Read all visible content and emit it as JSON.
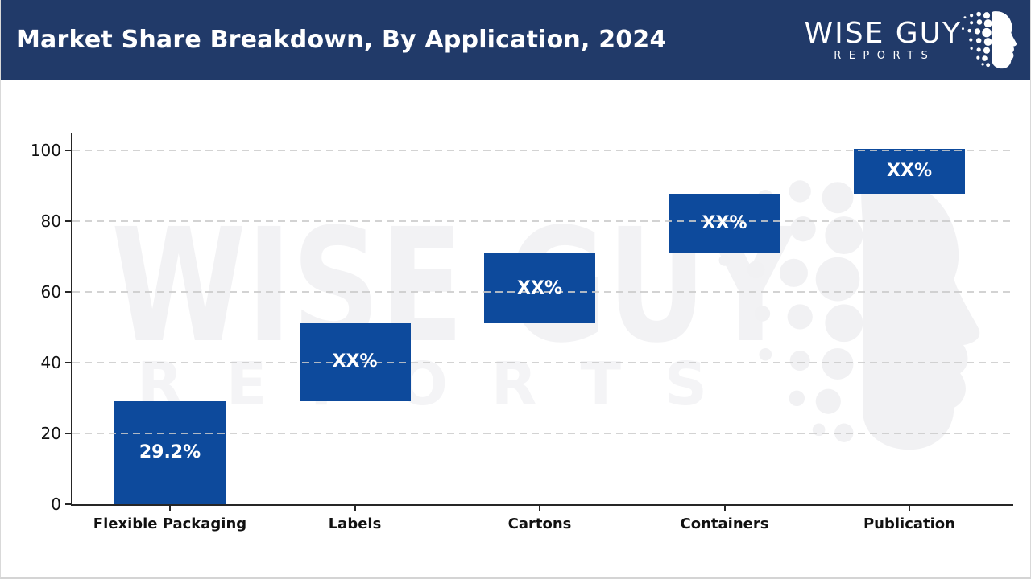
{
  "header": {
    "title": "Market Share Breakdown, By Application, 2024",
    "logo": {
      "line1": "WISE GUY",
      "line2": "REPORTS"
    }
  },
  "watermark": {
    "line1": "WISE GUY",
    "line2": "R E P O R T S"
  },
  "chart_data": {
    "type": "bar",
    "variant": "waterfall",
    "title": "Market Share Breakdown, By Application, 2024",
    "categories": [
      "Flexible Packaging",
      "Labels",
      "Cartons",
      "Containers",
      "Publication"
    ],
    "segments": [
      {
        "category": "Flexible Packaging",
        "label": "29.2%",
        "start": 0,
        "end": 29.2
      },
      {
        "category": "Labels",
        "label": "XX%",
        "start": 29.2,
        "end": 51.2
      },
      {
        "category": "Cartons",
        "label": "XX%",
        "start": 51.2,
        "end": 70.8
      },
      {
        "category": "Containers",
        "label": "XX%",
        "start": 70.8,
        "end": 87.7
      },
      {
        "category": "Publication",
        "label": "XX%",
        "start": 87.7,
        "end": 100.4
      }
    ],
    "xlabel": "",
    "ylabel": "",
    "yticks": [
      0,
      20,
      40,
      60,
      80,
      100
    ],
    "ylim": [
      0,
      105
    ],
    "grid": "horizontal-dashed",
    "legend": "none",
    "bar_color": "#0d4a9c",
    "value_label_color": "#ffffff"
  },
  "colors": {
    "header_bg": "#213a69",
    "bar": "#0d4a9c",
    "axis": "#262626",
    "gridline": "#d9d9d9",
    "text": "#111111",
    "watermark": "#f2f2f4"
  }
}
